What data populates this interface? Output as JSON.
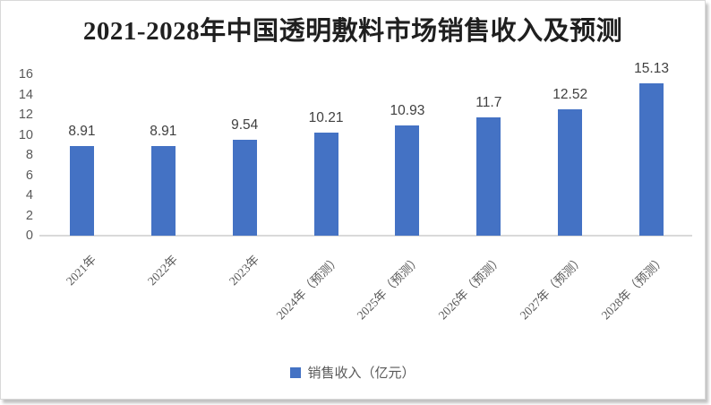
{
  "colors": {
    "bar": "#4472C4",
    "axis_line": "#D9D9D9",
    "tick_text": "#595959",
    "value_text": "#404040",
    "title_text": "#1F1F1F",
    "card_shadow": "#C2C2C2"
  },
  "chart_data": {
    "type": "bar",
    "title": "2021-2028年中国透明敷料市场销售收入及预测",
    "categories": [
      "2021年",
      "2022年",
      "2023年",
      "2024年（预测）",
      "2025年（预测）",
      "2026年（预测）",
      "2027年（预测）",
      "2028年（预测）"
    ],
    "values": [
      8.91,
      8.91,
      9.54,
      10.21,
      10.93,
      11.7,
      12.52,
      15.13
    ],
    "value_labels": [
      "8.91",
      "8.91",
      "9.54",
      "10.21",
      "10.93",
      "11.7",
      "12.52",
      "15.13"
    ],
    "xlabel": "",
    "ylabel": "",
    "ylim": [
      0,
      16
    ],
    "yticks": [
      0,
      2,
      4,
      6,
      8,
      10,
      12,
      14,
      16
    ],
    "grid": false,
    "bar_color": "#4472C4",
    "legend_label": "销售收入（亿元）",
    "legend_position": "bottom"
  }
}
